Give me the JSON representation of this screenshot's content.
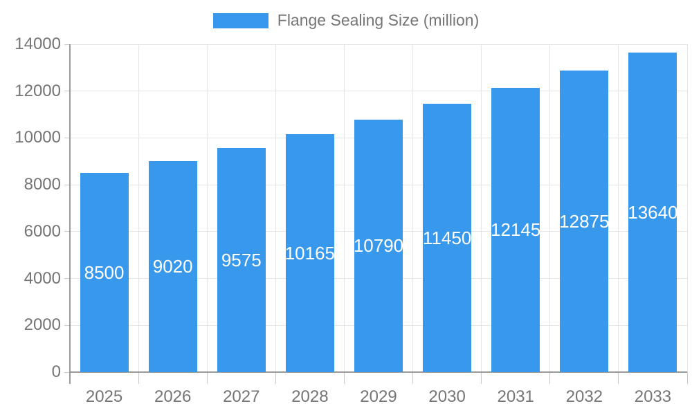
{
  "chart_data": {
    "type": "bar",
    "title": "Flange Sealing Size (million)",
    "legend": [
      "Flange Sealing Size (million)"
    ],
    "legend_position": "top-center",
    "categories": [
      "2025",
      "2026",
      "2027",
      "2028",
      "2029",
      "2030",
      "2031",
      "2032",
      "2033"
    ],
    "values": [
      8500,
      9020,
      9575,
      10165,
      10790,
      11450,
      12145,
      12875,
      13640
    ],
    "xlabel": "",
    "ylabel": "",
    "ylim": [
      0,
      14000
    ],
    "ytick_step": 2000,
    "yticks": [
      0,
      2000,
      4000,
      6000,
      8000,
      10000,
      12000,
      14000
    ],
    "grid": true,
    "bar_value_labels_inside": true
  },
  "colors": {
    "bar": "#3899EC",
    "bar_label": "#FFFFFF",
    "axis_text": "#757575",
    "grid_line": "#E4E4E4",
    "axis_line": "#999999",
    "tick_line": "#C8C8C8",
    "background": "#FFFFFF"
  }
}
